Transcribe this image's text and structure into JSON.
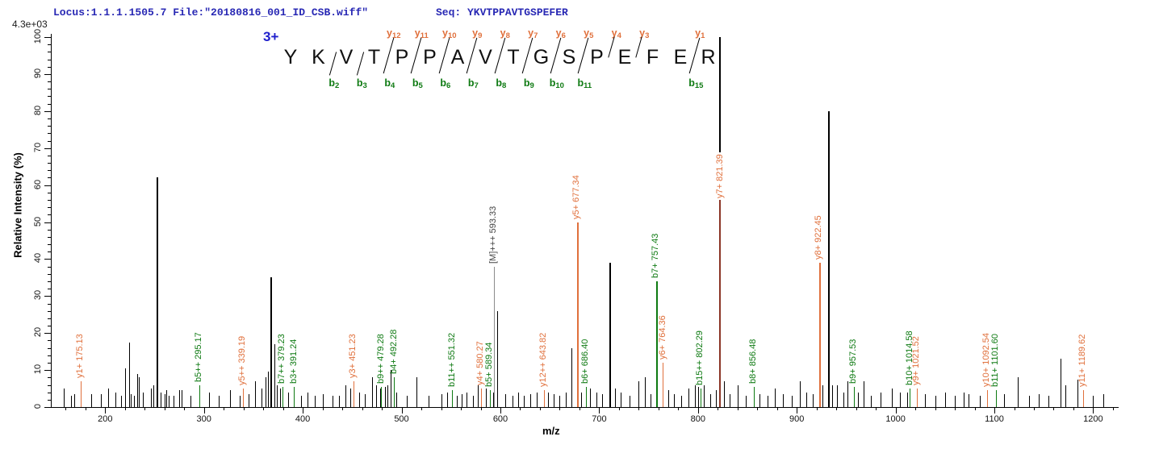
{
  "header": {
    "locus_file": "Locus:1.1.1.1505.7 File:\"20180816_001_ID_CSB.wiff\"",
    "sequence": "Seq: YKVTPPAVTGSPEFER"
  },
  "colors": {
    "y_ion": "#e0703c",
    "b_ion": "#0e7a12",
    "peak": "#000000",
    "base_peak_overlap": "#8b3526",
    "precursor_marker": "#8c8c8c",
    "precursor_label": "#444444",
    "header_text": "#2828b4",
    "charge_label": "#1e1ecc"
  },
  "chart_data": {
    "type": "bar",
    "subtype": "ms2-mass-spectrum",
    "title": "",
    "xlabel": "m/z",
    "ylabel": "Relative  Intensity (%)",
    "y_scale_note": "4.3e+03",
    "xlim": [
      145,
      1225
    ],
    "ylim": [
      0,
      100
    ],
    "grid": false,
    "legend": false,
    "x_major_ticks": [
      200,
      300,
      400,
      500,
      600,
      700,
      800,
      900,
      1000,
      1100,
      1200
    ],
    "x_minor_tick_step": 20,
    "y_major_tick_step": 10,
    "y_minor_tick_step": 2,
    "precursor": {
      "charge_label": "3+",
      "label": "[M]+++ 593.33",
      "mz": 593.33,
      "marker_top_intensity": 38
    },
    "peptide": {
      "sequence": "YKVTPPAVTGSPEFER",
      "cleavages": [
        {
          "gap": 2,
          "b": "b2"
        },
        {
          "gap": 3,
          "b": "b3"
        },
        {
          "gap": 4,
          "b": "b4",
          "y": "y12"
        },
        {
          "gap": 5,
          "b": "b5",
          "y": "y11"
        },
        {
          "gap": 6,
          "b": "b6",
          "y": "y10"
        },
        {
          "gap": 7,
          "b": "b7",
          "y": "y9"
        },
        {
          "gap": 8,
          "b": "b8",
          "y": "y8"
        },
        {
          "gap": 9,
          "b": "b9",
          "y": "y7"
        },
        {
          "gap": 10,
          "b": "b10",
          "y": "y6"
        },
        {
          "gap": 11,
          "b": "b11",
          "y": "y5"
        },
        {
          "gap": 12,
          "y": "y4"
        },
        {
          "gap": 13,
          "y": "y3"
        },
        {
          "gap": 15,
          "b": "b15",
          "y": "y1"
        }
      ]
    },
    "fragments": [
      {
        "label": "y1+ 175.13",
        "mz": 175.13,
        "intensity": 7,
        "series": "y"
      },
      {
        "label": "b5++ 295.17",
        "mz": 295.17,
        "intensity": 6,
        "series": "b"
      },
      {
        "label": "y5++ 339.19",
        "mz": 339.19,
        "intensity": 5,
        "series": "y"
      },
      {
        "label": "b7++ 379.23",
        "mz": 379.23,
        "intensity": 5.5,
        "series": "b"
      },
      {
        "label": "b3+ 391.24",
        "mz": 391.24,
        "intensity": 5.5,
        "series": "b"
      },
      {
        "label": "y3+ 451.23",
        "mz": 451.23,
        "intensity": 7,
        "series": "y"
      },
      {
        "label": "b9++ 479.28",
        "mz": 479.28,
        "intensity": 5.5,
        "series": "b"
      },
      {
        "label": "b4+ 492.28",
        "mz": 492.28,
        "intensity": 8,
        "series": "b"
      },
      {
        "label": "b11++ 551.32",
        "mz": 551.32,
        "intensity": 4.5,
        "series": "b"
      },
      {
        "label": "y4+ 580.27",
        "mz": 580.27,
        "intensity": 5,
        "series": "y"
      },
      {
        "label": "b5+ 589.34",
        "mz": 589.34,
        "intensity": 4.5,
        "series": "b"
      },
      {
        "label": "y12++ 643.82",
        "mz": 643.82,
        "intensity": 4.5,
        "series": "y"
      },
      {
        "label": "y5+ 677.34",
        "mz": 677.34,
        "intensity": 50,
        "series": "y"
      },
      {
        "label": "b6+ 686.40",
        "mz": 686.4,
        "intensity": 5.5,
        "series": "b"
      },
      {
        "label": "b7+ 757.43",
        "mz": 757.43,
        "intensity": 34,
        "series": "b"
      },
      {
        "label": "y6+ 764.36",
        "mz": 764.36,
        "intensity": 12,
        "series": "y"
      },
      {
        "label": "b15++ 802.29",
        "mz": 802.29,
        "intensity": 5,
        "series": "b"
      },
      {
        "label": "y7+ 821.39",
        "mz": 821.39,
        "intensity": 100,
        "series": "y",
        "base_peak": true
      },
      {
        "label": "b8+ 856.48",
        "mz": 856.48,
        "intensity": 5.5,
        "series": "b"
      },
      {
        "label": "y8+ 922.45",
        "mz": 922.45,
        "intensity": 39,
        "series": "y"
      },
      {
        "label": "b9+ 957.53",
        "mz": 957.53,
        "intensity": 5.5,
        "series": "b"
      },
      {
        "label": "b10+ 1014.58",
        "mz": 1014.58,
        "intensity": 5,
        "series": "b"
      },
      {
        "label": "y9+ 1021.52",
        "mz": 1021.52,
        "intensity": 5,
        "series": "y"
      },
      {
        "label": "y10+ 1092.54",
        "mz": 1092.54,
        "intensity": 4.5,
        "series": "y"
      },
      {
        "label": "b11+ 1101.60",
        "mz": 1101.6,
        "intensity": 4.5,
        "series": "b"
      },
      {
        "label": "y11+ 1189.62",
        "mz": 1189.62,
        "intensity": 4.5,
        "series": "y"
      }
    ],
    "unassigned_peaks": [
      [
        158,
        5
      ],
      [
        165,
        3
      ],
      [
        169,
        3.5
      ],
      [
        186,
        3.5
      ],
      [
        196,
        3.5
      ],
      [
        203,
        5
      ],
      [
        210,
        4
      ],
      [
        216,
        3
      ],
      [
        220,
        10.5
      ],
      [
        224,
        17.5
      ],
      [
        226,
        3.5
      ],
      [
        229,
        3
      ],
      [
        232,
        9
      ],
      [
        234,
        8
      ],
      [
        238,
        4
      ],
      [
        246,
        5
      ],
      [
        249,
        6
      ],
      [
        252,
        62
      ],
      [
        256,
        4
      ],
      [
        260,
        3.5
      ],
      [
        262,
        4.5
      ],
      [
        264,
        3
      ],
      [
        269,
        3
      ],
      [
        275,
        4.5
      ],
      [
        277,
        4.5
      ],
      [
        286,
        3
      ],
      [
        305,
        4
      ],
      [
        315,
        3
      ],
      [
        326,
        4.5
      ],
      [
        336,
        3
      ],
      [
        345,
        3.5
      ],
      [
        352,
        7
      ],
      [
        358,
        5
      ],
      [
        362,
        8
      ],
      [
        365,
        9.5
      ],
      [
        367,
        35
      ],
      [
        371,
        17
      ],
      [
        374,
        6
      ],
      [
        377,
        5
      ],
      [
        385,
        4
      ],
      [
        398,
        3
      ],
      [
        405,
        4
      ],
      [
        412,
        3
      ],
      [
        420,
        3.5
      ],
      [
        430,
        3
      ],
      [
        437,
        3
      ],
      [
        443,
        6
      ],
      [
        448,
        5
      ],
      [
        457,
        4
      ],
      [
        463,
        3.5
      ],
      [
        470,
        8
      ],
      [
        474,
        6
      ],
      [
        478,
        5
      ],
      [
        483,
        5.5
      ],
      [
        486,
        6
      ],
      [
        489,
        10
      ],
      [
        495,
        4
      ],
      [
        505,
        3
      ],
      [
        515,
        8
      ],
      [
        527,
        3
      ],
      [
        540,
        3.5
      ],
      [
        546,
        4
      ],
      [
        556,
        3
      ],
      [
        561,
        3.5
      ],
      [
        566,
        4
      ],
      [
        572,
        3
      ],
      [
        577,
        6
      ],
      [
        585,
        5
      ],
      [
        593,
        4
      ],
      [
        597,
        26
      ],
      [
        605,
        3.5
      ],
      [
        612,
        3
      ],
      [
        618,
        4
      ],
      [
        624,
        3
      ],
      [
        630,
        3.5
      ],
      [
        637,
        4
      ],
      [
        648,
        4
      ],
      [
        654,
        3.5
      ],
      [
        660,
        3
      ],
      [
        666,
        4
      ],
      [
        672,
        16
      ],
      [
        682,
        4
      ],
      [
        691,
        5
      ],
      [
        697,
        4
      ],
      [
        703,
        3.5
      ],
      [
        710,
        39
      ],
      [
        716,
        5
      ],
      [
        722,
        4
      ],
      [
        731,
        3
      ],
      [
        740,
        7
      ],
      [
        746,
        8
      ],
      [
        752,
        3.5
      ],
      [
        770,
        4.5
      ],
      [
        776,
        3.5
      ],
      [
        783,
        3
      ],
      [
        790,
        5
      ],
      [
        797,
        6
      ],
      [
        800,
        5.5
      ],
      [
        806,
        6
      ],
      [
        812,
        3.5
      ],
      [
        818,
        4.5
      ],
      [
        826,
        7
      ],
      [
        832,
        3.5
      ],
      [
        840,
        6
      ],
      [
        848,
        3
      ],
      [
        862,
        3.5
      ],
      [
        870,
        3
      ],
      [
        878,
        5
      ],
      [
        886,
        3.5
      ],
      [
        895,
        3
      ],
      [
        903,
        7
      ],
      [
        910,
        4
      ],
      [
        916,
        3.5
      ],
      [
        926,
        6
      ],
      [
        932,
        80
      ],
      [
        936,
        6
      ],
      [
        941,
        6
      ],
      [
        947,
        4
      ],
      [
        951,
        7
      ],
      [
        962,
        4
      ],
      [
        968,
        7
      ],
      [
        975,
        3
      ],
      [
        985,
        4
      ],
      [
        996,
        5
      ],
      [
        1004,
        4
      ],
      [
        1012,
        4
      ],
      [
        1030,
        3.5
      ],
      [
        1040,
        3
      ],
      [
        1050,
        4
      ],
      [
        1060,
        3
      ],
      [
        1069,
        4
      ],
      [
        1074,
        3.5
      ],
      [
        1085,
        3
      ],
      [
        1110,
        3.5
      ],
      [
        1124,
        8
      ],
      [
        1135,
        3
      ],
      [
        1145,
        3.5
      ],
      [
        1155,
        3
      ],
      [
        1167,
        13
      ],
      [
        1172,
        6
      ],
      [
        1184,
        7.5
      ],
      [
        1200,
        3
      ],
      [
        1210,
        3.5
      ]
    ]
  }
}
